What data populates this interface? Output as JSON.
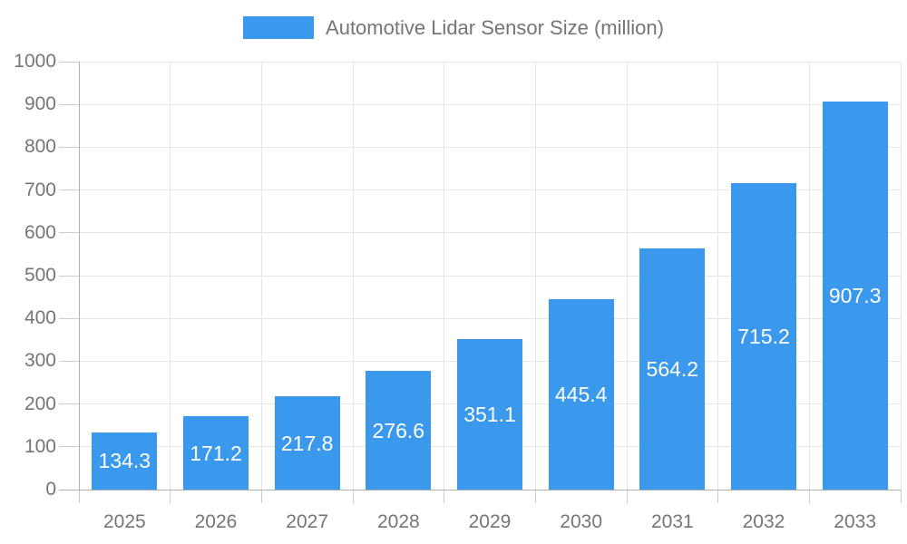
{
  "chart_data": {
    "type": "bar",
    "title": "Automotive Lidar Sensor Size (million)",
    "categories": [
      "2025",
      "2026",
      "2027",
      "2028",
      "2029",
      "2030",
      "2031",
      "2032",
      "2033"
    ],
    "series": [
      {
        "name": "Automotive Lidar Sensor Size (million)",
        "values": [
          134.3,
          171.2,
          217.8,
          276.6,
          351.1,
          445.4,
          564.2,
          715.2,
          907.3
        ]
      }
    ],
    "value_labels": [
      "134.3",
      "171.2",
      "217.8",
      "276.6",
      "351.1",
      "445.4",
      "564.2",
      "715.2",
      "907.3"
    ],
    "xlabel": "",
    "ylabel": "",
    "ylim": [
      0,
      1000
    ],
    "y_ticks": [
      0,
      100,
      200,
      300,
      400,
      500,
      600,
      700,
      800,
      900,
      1000
    ],
    "grid": true,
    "legend_position": "top",
    "colors": {
      "bar": "#3a99ec",
      "legend_text": "#757575",
      "axis_text": "#757575",
      "value_text": "#ffffff",
      "gridline": "#e6e6e6",
      "tick": "#cccccc",
      "axis_line": "#b0b0b0",
      "background": "#ffffff"
    }
  }
}
